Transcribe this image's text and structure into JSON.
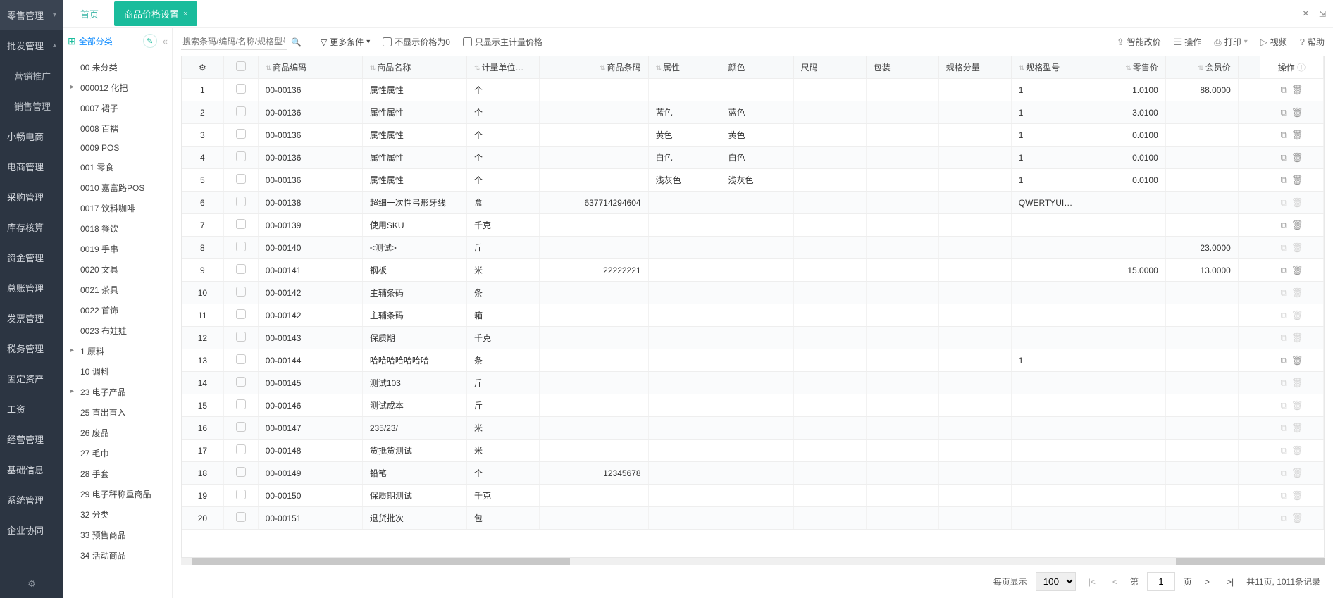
{
  "sidebar": {
    "items": [
      {
        "label": "零售管理",
        "arrow": "▾"
      },
      {
        "label": "批发管理",
        "arrow": "▴"
      },
      {
        "label": "营销推广",
        "sub": true
      },
      {
        "label": "销售管理",
        "sub": true
      },
      {
        "label": "小畅电商"
      },
      {
        "label": "电商管理"
      },
      {
        "label": "采购管理"
      },
      {
        "label": "库存核算"
      },
      {
        "label": "资金管理"
      },
      {
        "label": "总账管理"
      },
      {
        "label": "发票管理"
      },
      {
        "label": "税务管理"
      },
      {
        "label": "固定资产"
      },
      {
        "label": "工资"
      },
      {
        "label": "经营管理"
      },
      {
        "label": "基础信息"
      },
      {
        "label": "系统管理"
      },
      {
        "label": "企业协同"
      }
    ],
    "footer_icon": "⚙"
  },
  "tabs": {
    "home": "首页",
    "active": "商品价格设置",
    "close_title": "关闭"
  },
  "tree": {
    "root_label": "全部分类",
    "nodes": [
      {
        "label": "00 未分类"
      },
      {
        "label": "000012 化把",
        "parent": true
      },
      {
        "label": "0007 裙子"
      },
      {
        "label": "0008 百褶"
      },
      {
        "label": "0009 POS"
      },
      {
        "label": "001 零食"
      },
      {
        "label": "0010 嘉富路POS"
      },
      {
        "label": "0017 饮料咖啡"
      },
      {
        "label": "0018 餐饮"
      },
      {
        "label": "0019 手串"
      },
      {
        "label": "0020 文具"
      },
      {
        "label": "0021 茶具"
      },
      {
        "label": "0022 首饰"
      },
      {
        "label": "0023 布娃娃"
      },
      {
        "label": "1 原料",
        "parent": true
      },
      {
        "label": "10 调料"
      },
      {
        "label": "23 电子产品",
        "parent": true
      },
      {
        "label": "25 直出直入"
      },
      {
        "label": "26 废品"
      },
      {
        "label": "27 毛巾"
      },
      {
        "label": "28 手套"
      },
      {
        "label": "29 电子秤称重商品"
      },
      {
        "label": "32 分类"
      },
      {
        "label": "33 预售商品"
      },
      {
        "label": "34 活动商品"
      }
    ]
  },
  "toolbar": {
    "search_placeholder": "搜索条码/编码/名称/规格型号/别名",
    "more": "更多条件",
    "hide_zero": "不显示价格为0",
    "main_unit": "只显示主计量价格",
    "smart": "智能改价",
    "ops": "操作",
    "print": "打印",
    "video": "视频",
    "help": "帮助"
  },
  "columns": {
    "gear": "⚙",
    "code": "商品编码",
    "name": "商品名称",
    "unit": "计量单位…",
    "barcode": "商品条码",
    "attr": "属性",
    "color": "颜色",
    "size": "尺码",
    "pack": "包装",
    "weight": "规格分量",
    "spec": "规格型号",
    "retail": "零售价",
    "member": "会员价",
    "ops": "操作"
  },
  "rows": [
    {
      "n": "1",
      "code": "00-00136",
      "name": "属性属性",
      "unit": "个",
      "barcode": "",
      "attr": "",
      "color": "",
      "spec": "1",
      "retail": "1.0100",
      "member": "88.0000",
      "ops": "act"
    },
    {
      "n": "2",
      "code": "00-00136",
      "name": "属性属性",
      "unit": "个",
      "barcode": "",
      "attr": "蓝色",
      "color": "蓝色",
      "spec": "1",
      "retail": "3.0100",
      "member": "",
      "ops": "act"
    },
    {
      "n": "3",
      "code": "00-00136",
      "name": "属性属性",
      "unit": "个",
      "barcode": "",
      "attr": "黄色",
      "color": "黄色",
      "spec": "1",
      "retail": "0.0100",
      "member": "",
      "ops": "act"
    },
    {
      "n": "4",
      "code": "00-00136",
      "name": "属性属性",
      "unit": "个",
      "barcode": "",
      "attr": "白色",
      "color": "白色",
      "spec": "1",
      "retail": "0.0100",
      "member": "",
      "ops": "act"
    },
    {
      "n": "5",
      "code": "00-00136",
      "name": "属性属性",
      "unit": "个",
      "barcode": "",
      "attr": "浅灰色",
      "color": "浅灰色",
      "spec": "1",
      "retail": "0.0100",
      "member": "",
      "ops": "act"
    },
    {
      "n": "6",
      "code": "00-00138",
      "name": "超细一次性弓形牙线",
      "unit": "盒",
      "barcode": "637714294604",
      "attr": "",
      "color": "",
      "spec": "QWERTYUI…",
      "retail": "",
      "member": "",
      "ops": "dis"
    },
    {
      "n": "7",
      "code": "00-00139",
      "name": "使用SKU",
      "unit": "千克",
      "barcode": "",
      "attr": "",
      "color": "",
      "spec": "",
      "retail": "",
      "member": "",
      "ops": "act"
    },
    {
      "n": "8",
      "code": "00-00140",
      "name": "<测试>",
      "unit": "斤",
      "barcode": "",
      "attr": "",
      "color": "",
      "spec": "",
      "retail": "",
      "member": "23.0000",
      "ops": "dis"
    },
    {
      "n": "9",
      "code": "00-00141",
      "name": "钢板",
      "unit": "米",
      "barcode": "22222221",
      "attr": "",
      "color": "",
      "spec": "",
      "retail": "15.0000",
      "member": "13.0000",
      "ops": "act"
    },
    {
      "n": "10",
      "code": "00-00142",
      "name": "主辅条码",
      "unit": "条",
      "barcode": "",
      "attr": "",
      "color": "",
      "spec": "",
      "retail": "",
      "member": "",
      "ops": "dis"
    },
    {
      "n": "11",
      "code": "00-00142",
      "name": "主辅条码",
      "unit": "箱",
      "barcode": "",
      "attr": "",
      "color": "",
      "spec": "",
      "retail": "",
      "member": "",
      "ops": "dis"
    },
    {
      "n": "12",
      "code": "00-00143",
      "name": "保质期",
      "unit": "千克",
      "barcode": "",
      "attr": "",
      "color": "",
      "spec": "",
      "retail": "",
      "member": "",
      "ops": "dis"
    },
    {
      "n": "13",
      "code": "00-00144",
      "name": "哈哈哈哈哈哈哈",
      "unit": "条",
      "barcode": "",
      "attr": "",
      "color": "",
      "spec": "1",
      "retail": "",
      "member": "",
      "ops": "act"
    },
    {
      "n": "14",
      "code": "00-00145",
      "name": "测试103",
      "unit": "斤",
      "barcode": "",
      "attr": "",
      "color": "",
      "spec": "",
      "retail": "",
      "member": "",
      "ops": "dis"
    },
    {
      "n": "15",
      "code": "00-00146",
      "name": "测试成本",
      "unit": "斤",
      "barcode": "",
      "attr": "",
      "color": "",
      "spec": "",
      "retail": "",
      "member": "",
      "ops": "dis"
    },
    {
      "n": "16",
      "code": "00-00147",
      "name": "235/23/",
      "unit": "米",
      "barcode": "",
      "attr": "",
      "color": "",
      "spec": "",
      "retail": "",
      "member": "",
      "ops": "dis"
    },
    {
      "n": "17",
      "code": "00-00148",
      "name": "货抵货测试",
      "unit": "米",
      "barcode": "",
      "attr": "",
      "color": "",
      "spec": "",
      "retail": "",
      "member": "",
      "ops": "dis"
    },
    {
      "n": "18",
      "code": "00-00149",
      "name": "铅笔",
      "unit": "个",
      "barcode": "12345678",
      "attr": "",
      "color": "",
      "spec": "",
      "retail": "",
      "member": "",
      "ops": "dis"
    },
    {
      "n": "19",
      "code": "00-00150",
      "name": "保质期测试",
      "unit": "千克",
      "barcode": "",
      "attr": "",
      "color": "",
      "spec": "",
      "retail": "",
      "member": "",
      "ops": "dis"
    },
    {
      "n": "20",
      "code": "00-00151",
      "name": "退货批次",
      "unit": "包",
      "barcode": "",
      "attr": "",
      "color": "",
      "spec": "",
      "retail": "",
      "member": "",
      "ops": "dis"
    }
  ],
  "pager": {
    "per_label": "每页显示",
    "per_value": "100",
    "unit": "页",
    "cur_prefix": "第",
    "cur_value": "1",
    "summary": "共11页, 1011条记录"
  }
}
